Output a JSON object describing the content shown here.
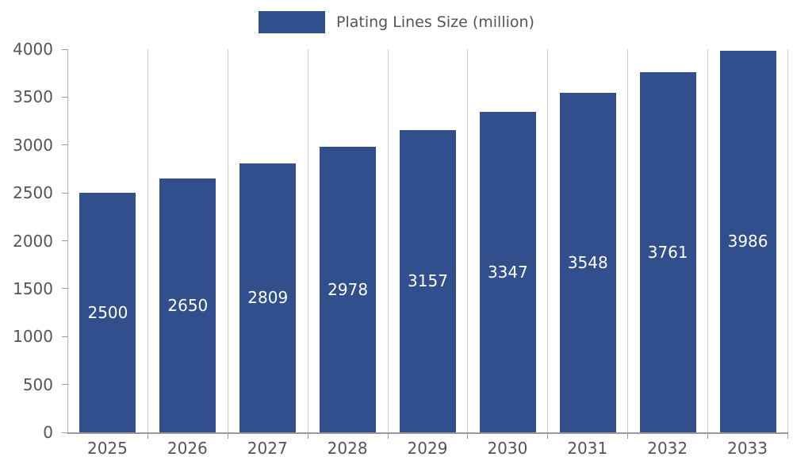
{
  "legend": {
    "label": "Plating Lines Size (million)"
  },
  "colors": {
    "bar": "#314e8d",
    "axis": "#9a9a9a",
    "grid": "#cccccc",
    "text": "#555555",
    "bar_label_text": "#ffffff"
  },
  "chart_data": {
    "type": "bar",
    "title": "Plating Lines Size (million)",
    "categories": [
      "2025",
      "2026",
      "2027",
      "2028",
      "2029",
      "2030",
      "2031",
      "2032",
      "2033"
    ],
    "values": [
      2500,
      2650,
      2809,
      2978,
      3157,
      3347,
      3548,
      3761,
      3986
    ],
    "xlabel": "",
    "ylabel": "",
    "ylim": [
      0,
      4000
    ],
    "ytick_step": 500,
    "yticks": [
      0,
      500,
      1000,
      1500,
      2000,
      2500,
      3000,
      3500,
      4000
    ],
    "grid": "vertical",
    "legend_position": "top",
    "value_labels": "inside-center"
  }
}
